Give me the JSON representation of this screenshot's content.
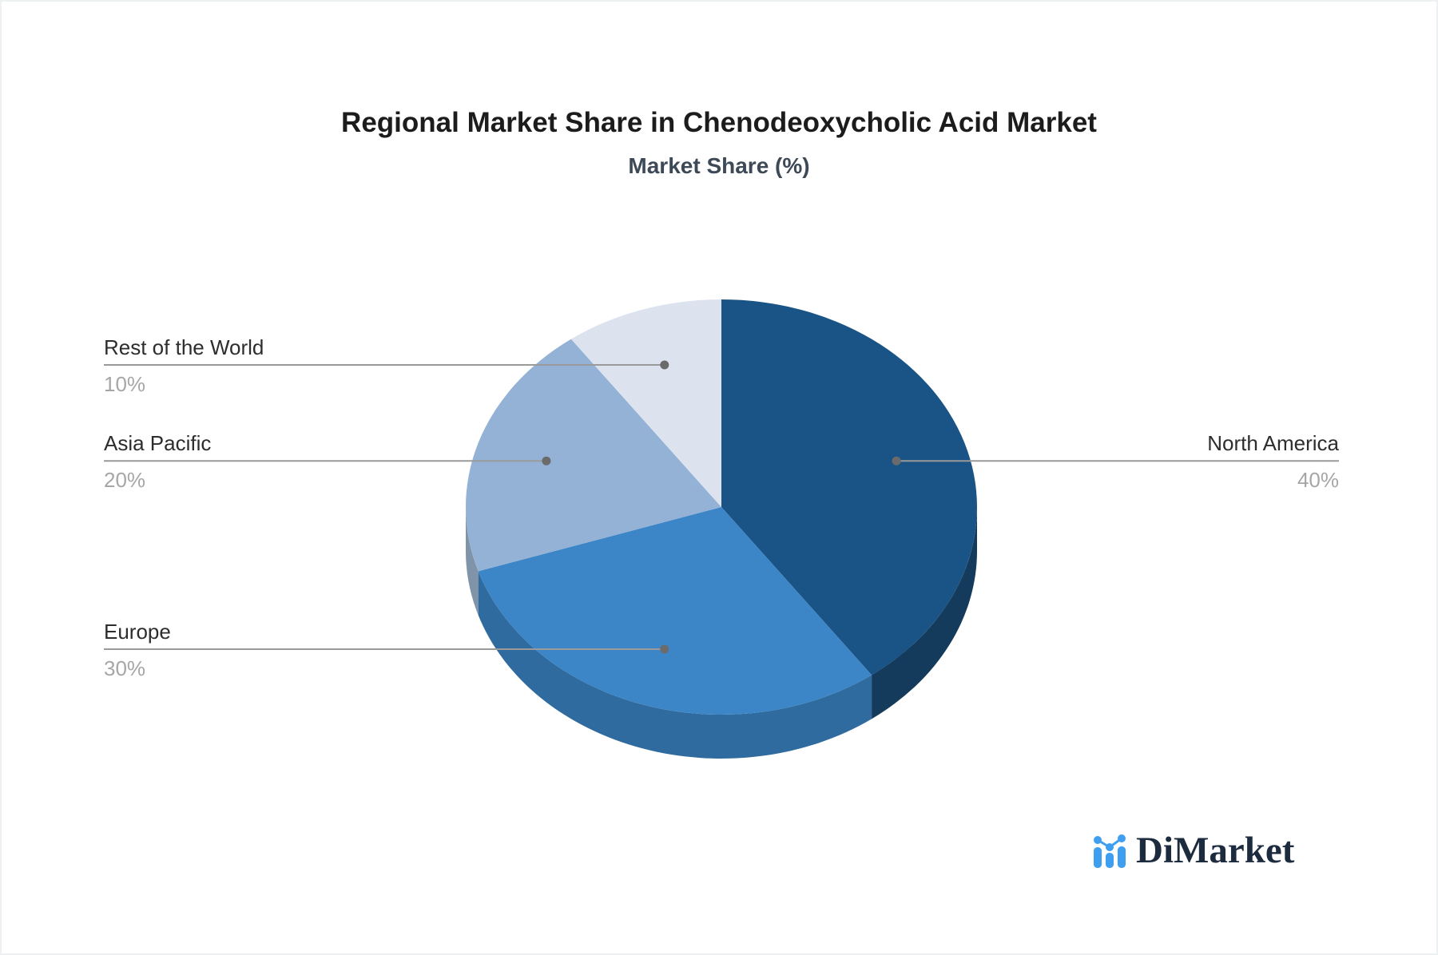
{
  "page": {
    "title": "Regional Market Share in Chenodeoxycholic Acid Market",
    "subtitle": "Market Share (%)"
  },
  "chart_data": {
    "type": "pie",
    "title": "Regional Market Share in Chenodeoxycholic Acid Market",
    "subtitle": "Market Share (%)",
    "unit": "%",
    "style": "3d-pie-with-callout-lines",
    "start_angle_deg": 0,
    "direction": "clockwise",
    "slices": [
      {
        "label": "North America",
        "value": 40,
        "pct_label": "40%",
        "color": "#1a5486",
        "side_color": "#143a5c",
        "callout_side": "right"
      },
      {
        "label": "Europe",
        "value": 30,
        "pct_label": "30%",
        "color": "#3c86c7",
        "side_color": "#2f6b9e",
        "callout_side": "left"
      },
      {
        "label": "Asia Pacific",
        "value": 20,
        "pct_label": "20%",
        "color": "#94b2d6",
        "side_color": "#7f93a9",
        "callout_side": "left"
      },
      {
        "label": "Rest of the World",
        "value": 10,
        "pct_label": "10%",
        "color": "#dce3ee",
        "side_color": "#c2cbd9",
        "callout_side": "left"
      }
    ],
    "callout_line_color": "#9a9a9a",
    "callout_dot_color": "#6b6b6b",
    "label_color": "#2d2d2d",
    "value_color": "#a6a6a6"
  },
  "branding": {
    "name": "DiMarket",
    "icon": "bar-line-chart-icon",
    "icon_color": "#3e9ff1",
    "text_color": "#1d2b3f"
  }
}
